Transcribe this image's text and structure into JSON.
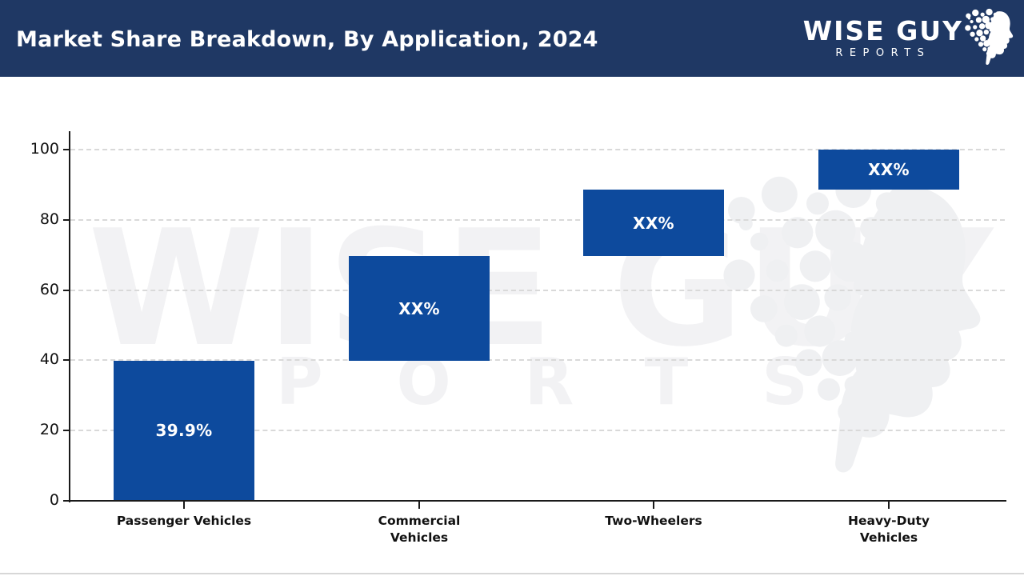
{
  "header": {
    "title": "Market Share Breakdown, By Application, 2024",
    "logo_line1": "WISE GUY",
    "logo_line2": "REPORTS",
    "bg_color": "#1f3864"
  },
  "watermark": {
    "line1": "WISE GUY",
    "line2": "PORTS"
  },
  "chart_data": {
    "type": "bar",
    "variant": "waterfall",
    "title": "Market Share Breakdown, By Application, 2024",
    "categories": [
      "Passenger Vehicles",
      "Commercial\nVehicles",
      "Two-Wheelers",
      "Heavy-Duty\nVehicles"
    ],
    "segments": [
      {
        "category": "Passenger Vehicles",
        "start": 0,
        "end": 39.9,
        "label": "39.9%"
      },
      {
        "category": "Commercial Vehicles",
        "start": 39.9,
        "end": 69.6,
        "label": "XX%"
      },
      {
        "category": "Two-Wheelers",
        "start": 69.6,
        "end": 88.6,
        "label": "XX%"
      },
      {
        "category": "Heavy-Duty Vehicles",
        "start": 88.6,
        "end": 100,
        "label": "XX%"
      }
    ],
    "y_ticks": [
      0,
      20,
      40,
      60,
      80,
      100
    ],
    "ylim": [
      0,
      105
    ],
    "xlabel": "",
    "ylabel": "",
    "grid": "horizontal-dashed",
    "legend": "none",
    "bar_color": "#0d4a9d",
    "bar_label_color": "#ffffff",
    "axis_color": "#1a1a1a",
    "grid_color": "#d9d9d9",
    "header_color": "#1f3864"
  }
}
